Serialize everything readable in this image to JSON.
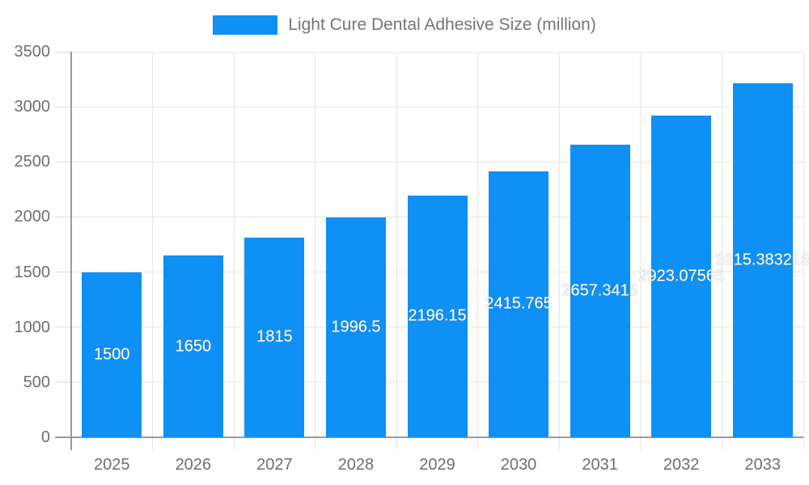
{
  "legend": {
    "label": "Light Cure Dental Adhesive Size (million)"
  },
  "chart_data": {
    "type": "bar",
    "title": "",
    "categories": [
      "2025",
      "2026",
      "2027",
      "2028",
      "2029",
      "2030",
      "2031",
      "2032",
      "2033"
    ],
    "series": [
      {
        "name": "Light Cure Dental Adhesive Size (million)",
        "values": [
          1500,
          1650,
          1815,
          1996.5,
          2196.15,
          2415.765,
          2657.3415,
          2923.07565,
          3215.383215
        ]
      }
    ],
    "value_labels": [
      "1500",
      "1650",
      "1815",
      "1996.5",
      "2196.15",
      "2415.765",
      "2657.3415",
      "2923.07565",
      "3215.383215"
    ],
    "xlabel": "",
    "ylabel": "",
    "ylim": [
      0,
      3500
    ],
    "yticks": [
      0,
      500,
      1000,
      1500,
      2000,
      2500,
      3000,
      3500
    ],
    "grid": true,
    "legend_position": "top-center",
    "colors": {
      "bar": "#0e90f5",
      "grid": "#e4e4e4",
      "axis": "#9b9b9b",
      "tick": "#d9d9d9",
      "axis_text": "#6e6e6e",
      "value_label_text": "#ffffff",
      "legend_text": "#757575"
    }
  }
}
